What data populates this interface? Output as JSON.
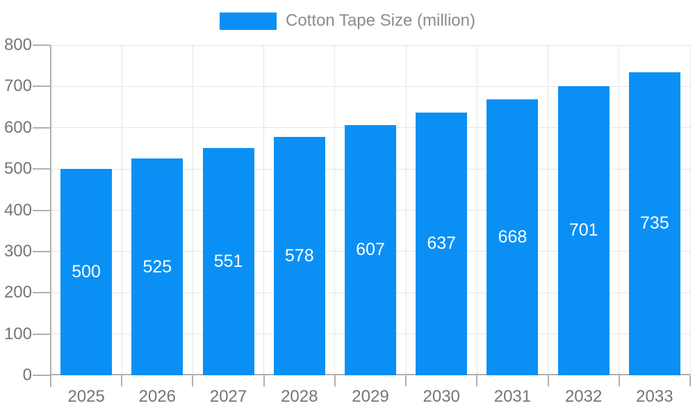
{
  "legend": {
    "label": "Cotton Tape Size (million)"
  },
  "colors": {
    "bar": "#0a90f5",
    "grid": "#e5e5e5",
    "axis": "#b0b0b0",
    "tick_text": "#757575",
    "legend_text": "#8c8c8c",
    "bar_label": "#ffffff",
    "background": "#ffffff"
  },
  "chart_data": {
    "type": "bar",
    "title": "Cotton Tape Size (million)",
    "categories": [
      "2025",
      "2026",
      "2027",
      "2028",
      "2029",
      "2030",
      "2031",
      "2032",
      "2033"
    ],
    "values": [
      500,
      525,
      551,
      578,
      607,
      637,
      668,
      701,
      735
    ],
    "series": [
      {
        "name": "Cotton Tape Size (million)",
        "values": [
          500,
          525,
          551,
          578,
          607,
          637,
          668,
          701,
          735
        ]
      }
    ],
    "xlabel": "",
    "ylabel": "",
    "ylim": [
      0,
      800
    ],
    "ytick_step": 100,
    "yticks": [
      0,
      100,
      200,
      300,
      400,
      500,
      600,
      700,
      800
    ],
    "grid": true,
    "legend_position": "top-center",
    "value_labels": "inside-middle-white"
  }
}
